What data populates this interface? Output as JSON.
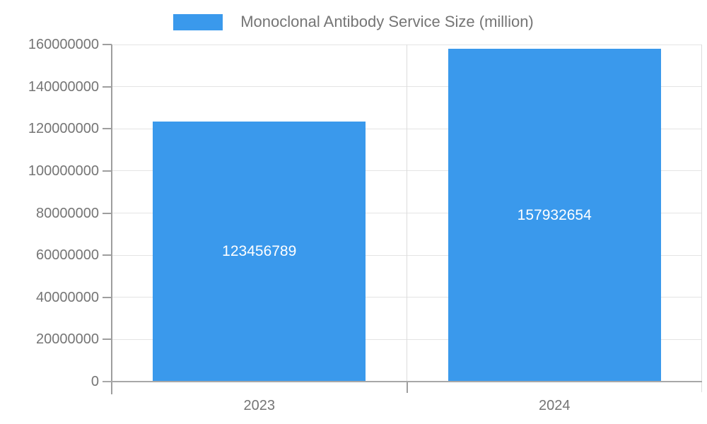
{
  "legend": {
    "label": "Monoclonal Antibody Service Size (million)"
  },
  "colors": {
    "bar": "#3A99EC",
    "grid": "#E4E4E4",
    "axis": "#9E9E9E",
    "text": "#757575",
    "bar_label": "#FFFFFF",
    "background": "#FFFFFF"
  },
  "chart_data": {
    "type": "bar",
    "title": "Monoclonal Antibody Service Size (million)",
    "categories": [
      "2023",
      "2024"
    ],
    "series": [
      {
        "name": "Monoclonal Antibody Service Size (million)",
        "color": "#3A99EC",
        "values": [
          123456789,
          157932654
        ]
      }
    ],
    "bar_labels": [
      "123456789",
      "157932654"
    ],
    "ylim": [
      0,
      160000000
    ],
    "ytick_step": 20000000,
    "ytick_labels": [
      "0",
      "20000000",
      "40000000",
      "60000000",
      "80000000",
      "100000000",
      "120000000",
      "140000000",
      "160000000"
    ],
    "grid": true,
    "legend_position": "top"
  }
}
